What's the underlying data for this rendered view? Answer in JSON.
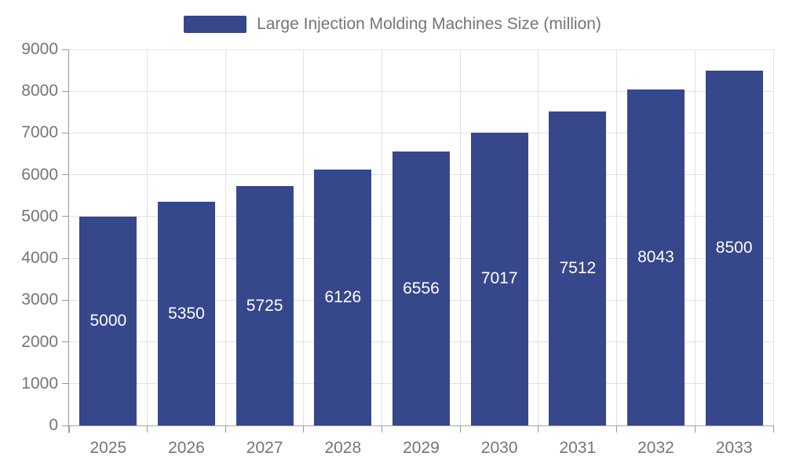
{
  "legend": {
    "label": "Large Injection Molding Machines Size (million)"
  },
  "chart_data": {
    "type": "bar",
    "title": "Large Injection Molding Machines Size (million)",
    "categories": [
      "2025",
      "2026",
      "2027",
      "2028",
      "2029",
      "2030",
      "2031",
      "2032",
      "2033"
    ],
    "values": [
      5000,
      5350,
      5725,
      6126,
      6556,
      7017,
      7512,
      8043,
      8500
    ],
    "xlabel": "",
    "ylabel": "",
    "ylim": [
      0,
      9000
    ],
    "yticks": [
      0,
      1000,
      2000,
      3000,
      4000,
      5000,
      6000,
      7000,
      8000,
      9000
    ],
    "grid": true,
    "legend_position": "top-center",
    "value_labels": "inside-center",
    "colors": {
      "bar": "#36478C",
      "grid_line": "#e2e2e2",
      "axis_line": "#9a9a9a",
      "tick_text": "#757575",
      "legend_text": "#757575",
      "value_label_text": "#ffffff",
      "background": "#ffffff"
    }
  }
}
